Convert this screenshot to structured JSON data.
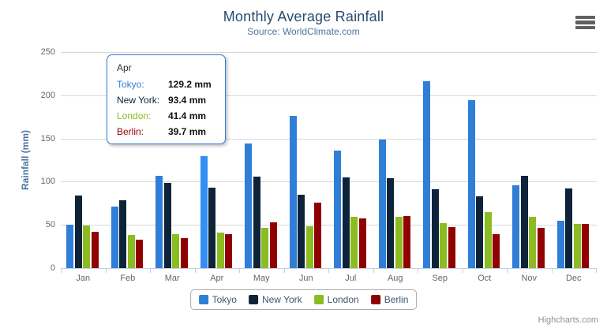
{
  "chart": {
    "title": "Monthly Average Rainfall",
    "subtitle": "Source: WorldClimate.com"
  },
  "chart_data": {
    "type": "bar",
    "title": "Monthly Average Rainfall",
    "subtitle": "Source: WorldClimate.com",
    "categories": [
      "Jan",
      "Feb",
      "Mar",
      "Apr",
      "May",
      "Jun",
      "Jul",
      "Aug",
      "Sep",
      "Oct",
      "Nov",
      "Dec"
    ],
    "series": [
      {
        "name": "Tokyo",
        "color": "#2f7ed8",
        "values": [
          49.9,
          71.5,
          106.4,
          129.2,
          144.0,
          176.0,
          135.6,
          148.5,
          216.4,
          194.1,
          95.6,
          54.4
        ]
      },
      {
        "name": "New York",
        "color": "#0d233a",
        "values": [
          83.6,
          78.8,
          98.5,
          93.4,
          106.0,
          84.5,
          105.0,
          104.3,
          91.2,
          83.5,
          106.6,
          92.3
        ]
      },
      {
        "name": "London",
        "color": "#8bbc21",
        "values": [
          48.9,
          38.8,
          39.3,
          41.4,
          47.0,
          48.3,
          59.0,
          59.6,
          52.4,
          65.2,
          59.3,
          51.2
        ]
      },
      {
        "name": "Berlin",
        "color": "#910000",
        "values": [
          42.4,
          33.2,
          34.5,
          39.7,
          52.6,
          75.5,
          57.4,
          60.4,
          47.6,
          39.1,
          46.8,
          51.1
        ]
      }
    ],
    "xlabel": "",
    "ylabel": "Rainfall (mm)",
    "ylim": [
      0,
      250
    ],
    "yticks": [
      0,
      50,
      100,
      150,
      200,
      250
    ],
    "grid": true,
    "legend_position": "bottom"
  },
  "tooltip": {
    "category": "Apr",
    "hovered_series": "Tokyo",
    "rows": [
      {
        "name": "Tokyo",
        "label": "Tokyo:",
        "value": "129.2 mm"
      },
      {
        "name": "New York",
        "label": "New York:",
        "value": "93.4 mm"
      },
      {
        "name": "London",
        "label": "London:",
        "value": "41.4 mm"
      },
      {
        "name": "Berlin",
        "label": "Berlin:",
        "value": "39.7 mm"
      }
    ]
  },
  "legend": {
    "items": [
      "Tokyo",
      "New York",
      "London",
      "Berlin"
    ]
  },
  "credits": {
    "text": "Highcharts.com"
  },
  "colors": {
    "title": "#274b6d",
    "subtitle": "#4d759e",
    "axis_label": "#666666",
    "gridline": "#d8d8d8",
    "axis_line": "#c0d0e0",
    "legend_text": "#3e576f",
    "tooltip_border": "#2f7ed8"
  }
}
